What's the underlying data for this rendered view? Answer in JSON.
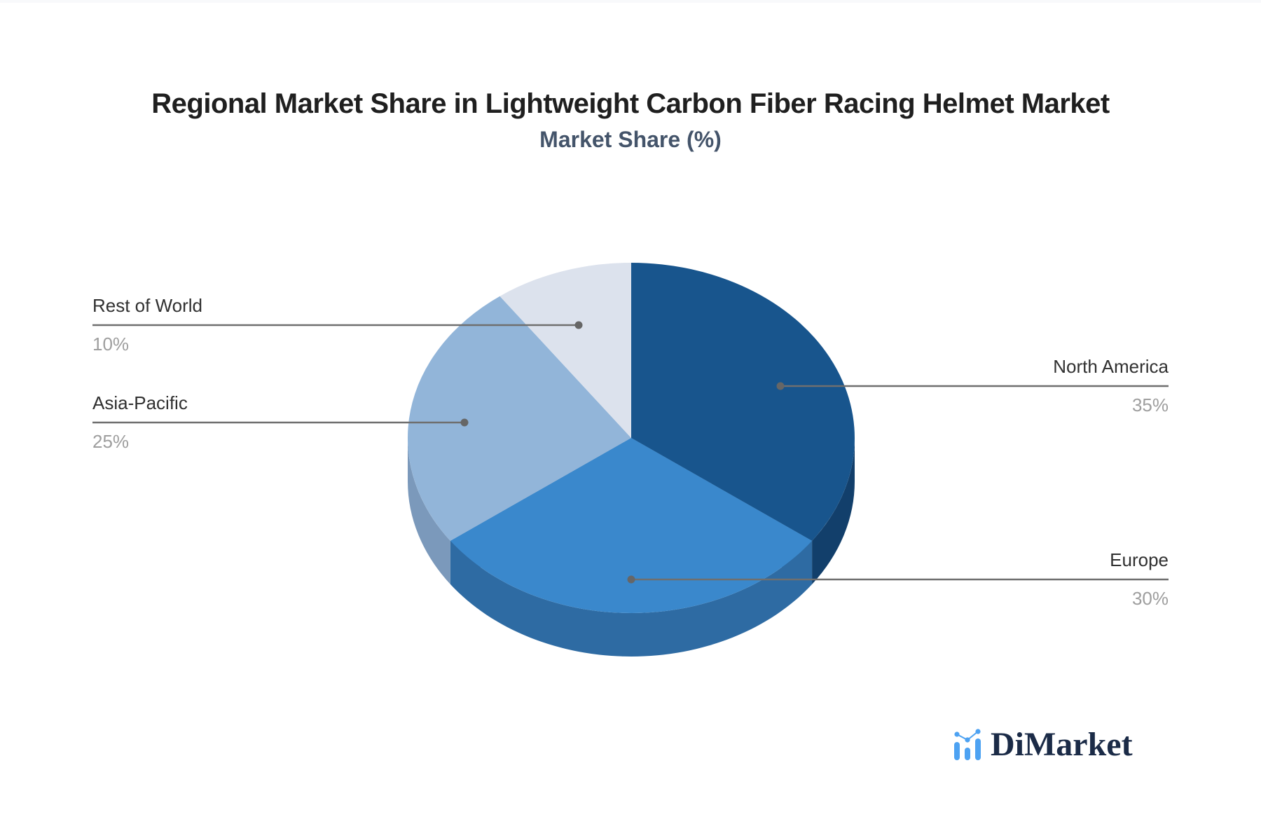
{
  "page": {
    "background": "#ffffff",
    "top_strip_color": "#f8f9fb"
  },
  "header": {
    "title": "Regional Market Share in Lightweight Carbon Fiber Racing Helmet Market",
    "subtitle": "Market Share (%)"
  },
  "chart_data": {
    "type": "pie",
    "style": "3d",
    "title": "Regional Market Share in Lightweight Carbon Fiber Racing Helmet Market",
    "subtitle": "Market Share (%)",
    "unit": "%",
    "direction": "clockwise",
    "start_angle_deg": 0,
    "legend_position": "callout-labels",
    "slices": [
      {
        "label": "North America",
        "value": 35,
        "display_value": "35%",
        "color": "#18558d",
        "side_color": "#123f6b"
      },
      {
        "label": "Europe",
        "value": 30,
        "display_value": "30%",
        "color": "#3a88cc",
        "side_color": "#2e6ba3",
        "wall_color": "#2c6196"
      },
      {
        "label": "Asia-Pacific",
        "value": 25,
        "display_value": "25%",
        "color": "#92b5d9",
        "side_color": "#7b99bb"
      },
      {
        "label": "Rest of World",
        "value": 10,
        "display_value": "10%",
        "color": "#dce2ed",
        "side_color": "#c3cddd"
      }
    ],
    "label_color": "#303030",
    "value_color": "#9e9e9e",
    "leader_line_color": "#6f6f6f",
    "leader_dot_color": "#666666"
  },
  "logo": {
    "text": "DiMarket",
    "icon": "bar-line-chart-icon",
    "text_color": "#1b2b47",
    "icon_color": "#4da2f2"
  }
}
